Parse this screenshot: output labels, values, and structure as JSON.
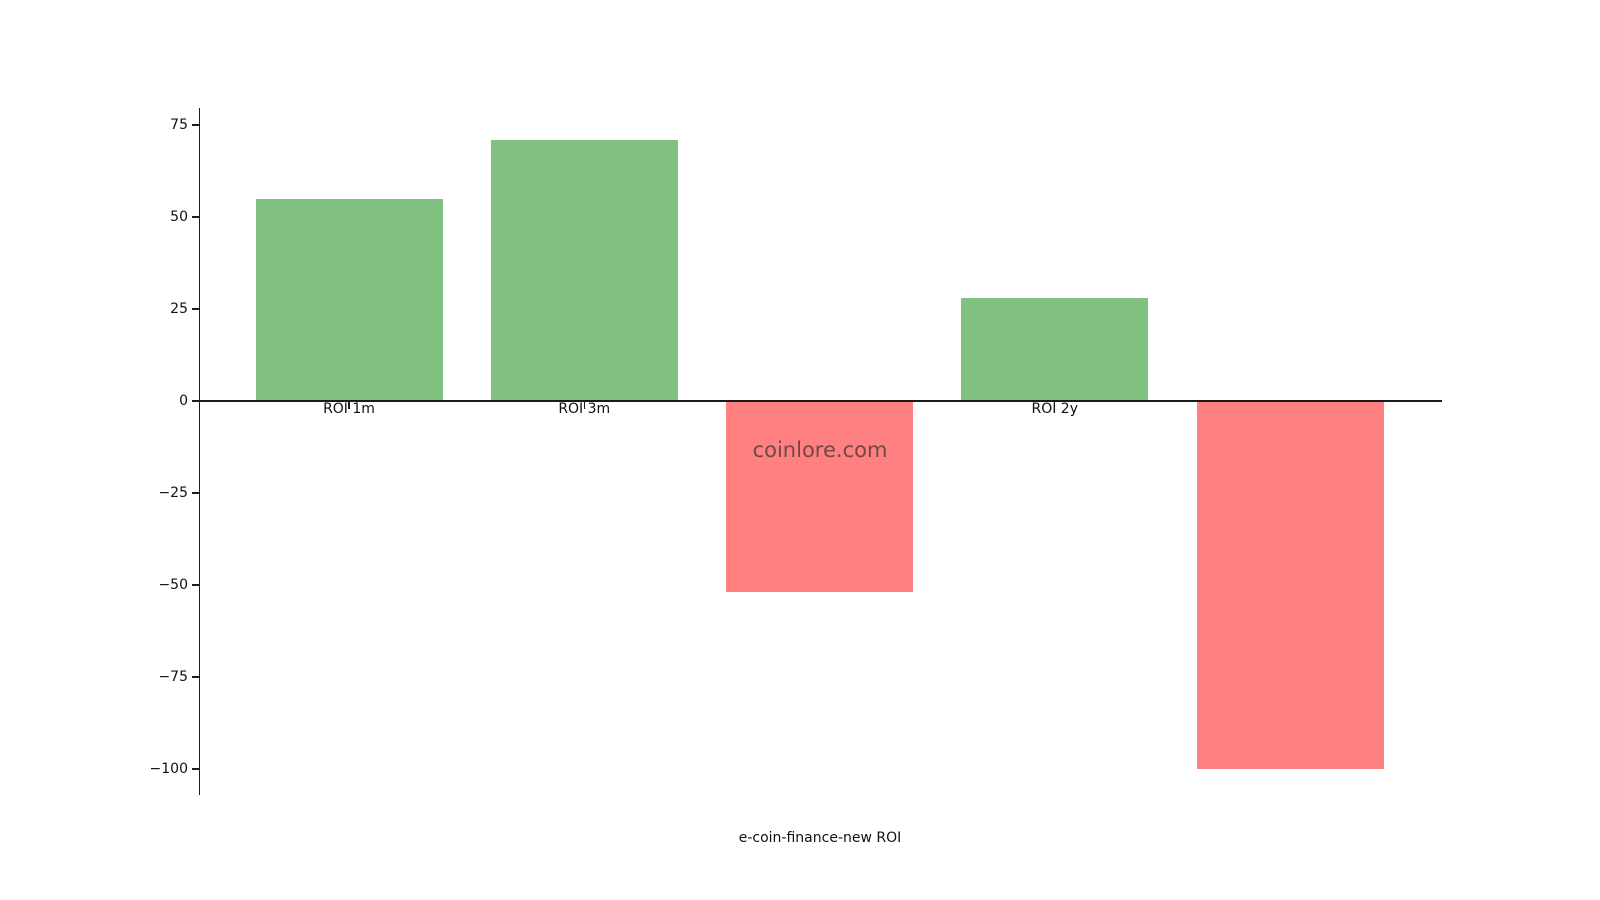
{
  "watermark": "coinlore.com",
  "chart_data": {
    "type": "bar",
    "title": "",
    "xlabel": "e-coin-finance-new ROI",
    "ylabel": "",
    "categories": [
      "ROI 1m",
      "ROI 3m",
      "",
      "ROI 2y",
      ""
    ],
    "values": [
      55,
      71,
      -52,
      28,
      -100
    ],
    "yticks": [
      75,
      50,
      25,
      0,
      -25,
      -50,
      -75,
      -100
    ],
    "ytick_labels": [
      "75",
      "50",
      "25",
      "0",
      "−25",
      "−50",
      "−75",
      "−100"
    ],
    "ylim": [
      -106,
      80
    ],
    "grid": false,
    "legend": false,
    "bar_colors": {
      "positive": "#80C080",
      "negative": "#FF8080"
    }
  }
}
